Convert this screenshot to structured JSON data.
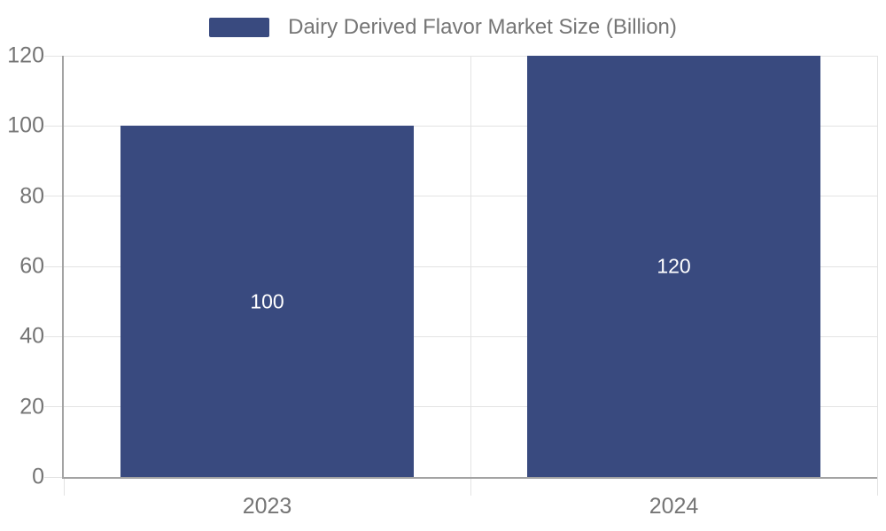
{
  "legend": {
    "label": "Dairy Derived Flavor Market Size (Billion)",
    "position": "top"
  },
  "chart_data": {
    "type": "bar",
    "title": "Dairy Derived Flavor Market Size (Billion)",
    "series_name": "Dairy Derived Flavor Market Size (Billion)",
    "categories": [
      "2023",
      "2024"
    ],
    "values": [
      100,
      120
    ],
    "value_labels": [
      "100",
      "120"
    ],
    "xlabel": "",
    "ylabel": "",
    "ylim": [
      0,
      120
    ],
    "yticks": [
      0,
      20,
      40,
      60,
      80,
      100,
      120
    ],
    "grid": true,
    "legend_position": "top",
    "bar_color": "#394A7F",
    "value_label_color": "#FFFFFF",
    "axis_text_color": "#757575",
    "axis_line_color": "#A3A3A3",
    "grid_color": "#E3E3E3"
  }
}
